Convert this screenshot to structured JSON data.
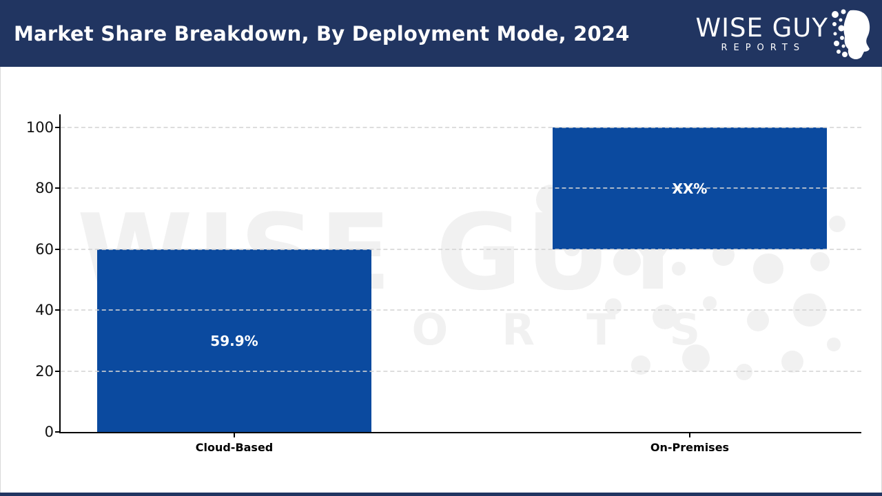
{
  "header": {
    "title": "Market Share Breakdown, By Deployment Mode, 2024",
    "logo": {
      "line1": "WISE GUY",
      "line2": "REPORTS",
      "face_icon": "dotted-head-profile"
    },
    "background_color": "#213561"
  },
  "watermark": {
    "line1": "WISE GUY",
    "line2": "REPORTS",
    "color": "#f1f1f1"
  },
  "chart_data": {
    "type": "bar",
    "variant": "stacked-waterfall",
    "title": "Market Share Breakdown, By Deployment Mode, 2024",
    "categories": [
      "Cloud-Based",
      "On-Premises"
    ],
    "bars": [
      {
        "category": "Cloud-Based",
        "start": 0,
        "end": 59.9,
        "label": "59.9%"
      },
      {
        "category": "On-Premises",
        "start": 59.9,
        "end": 100,
        "label": "XX%"
      }
    ],
    "yticks": [
      0,
      20,
      40,
      60,
      80,
      100
    ],
    "ylim": [
      0,
      104
    ],
    "xlabel": "",
    "ylabel": "",
    "grid": "horizontal-dashed, drawn over bars",
    "legend": "none",
    "bar_color": "#0B4A9F",
    "bar_label_color": "#ffffff",
    "axis_color": "#000000"
  }
}
